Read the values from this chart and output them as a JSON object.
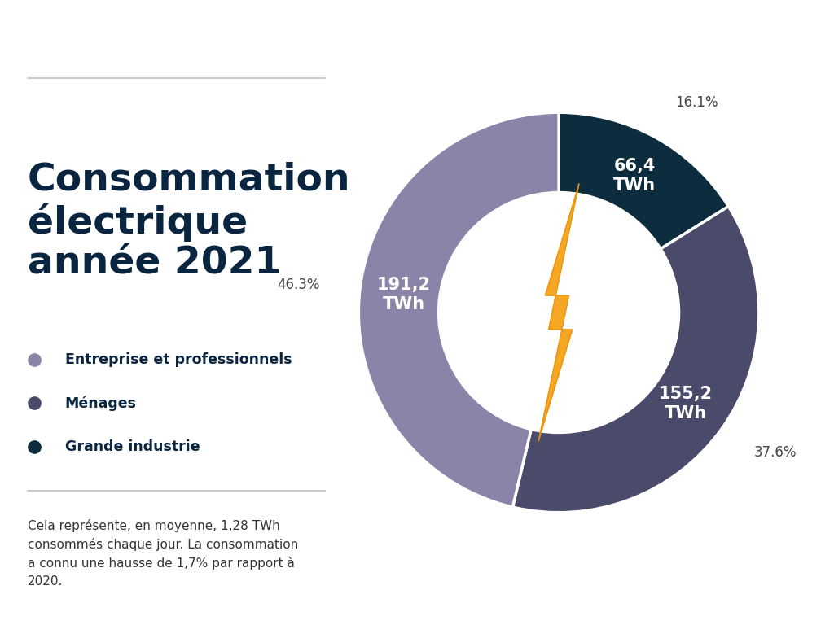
{
  "title_line1": "Consommation",
  "title_line2": "électrique",
  "title_line3": "année 2021",
  "title_color": "#0a2540",
  "legend_items": [
    {
      "label": "Entreprise et professionnels",
      "color": "#8b84a8"
    },
    {
      "label": "Ménages",
      "color": "#4a4a6a"
    },
    {
      "label": "Grande industrie",
      "color": "#0d2d3e"
    }
  ],
  "footnote": "Cela représente, en moyenne, 1,28 TWh\nconsoMmés chaque jour. La consommation\na connu une hausse de 1,7% par rapport à\n2020.",
  "pie_values": [
    16.1,
    37.6,
    46.3
  ],
  "pie_colors": [
    "#0d2d3e",
    "#4a4a6a",
    "#8b84a8"
  ],
  "pie_labels": [
    "66,4\nTWh",
    "155,2\nTWh",
    "191,2\nTWh"
  ],
  "pie_pct": [
    "16.1%",
    "37.6%",
    "46.3%"
  ],
  "background_color": "#ffffff",
  "divider_color": "#c0c0c8",
  "text_color": "#333333"
}
